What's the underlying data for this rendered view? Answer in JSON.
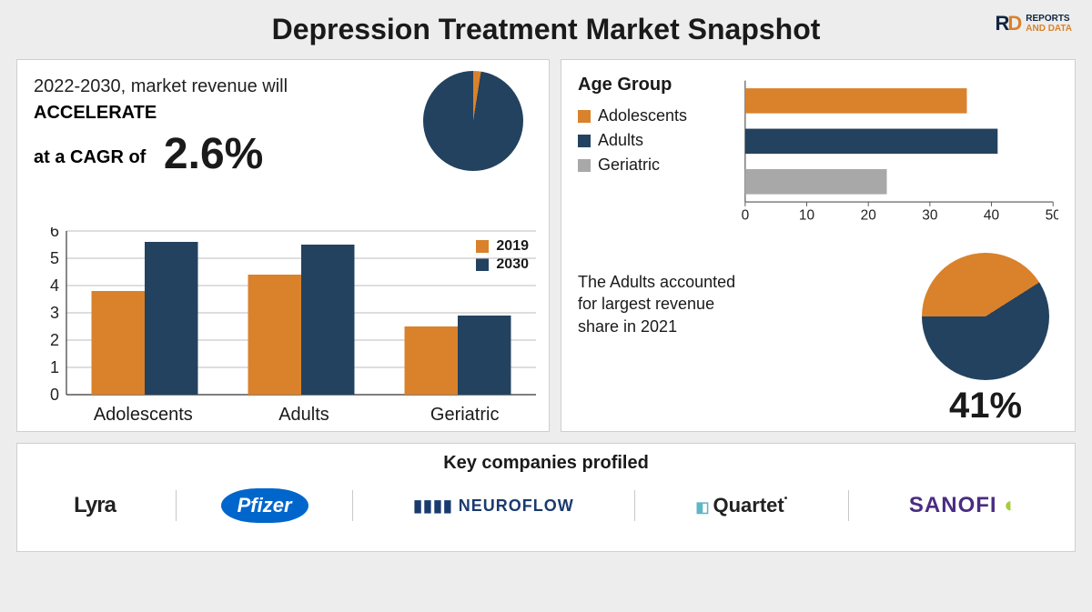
{
  "title": "Depression Treatment Market Snapshot",
  "brand": {
    "line1": "REPORTS",
    "line2": "AND DATA"
  },
  "colors": {
    "orange": "#d9822b",
    "navy": "#23425f",
    "gray": "#a8a8a8",
    "axis": "#777",
    "grid": "#bdbdbd",
    "bg": "#ededed",
    "card": "#ffffff"
  },
  "left": {
    "sub1": "2022-2030, market revenue will",
    "sub2_a": "ACCELERATE",
    "sub2_b": "at a CAGR of",
    "cagr": "2.6%",
    "pie": {
      "slice_color": "#d9822b",
      "rest_color": "#23425f",
      "slice_deg": 9
    },
    "legend": [
      {
        "label": "2019",
        "color": "#d9822b"
      },
      {
        "label": "2030",
        "color": "#23425f"
      }
    ],
    "chart": {
      "type": "grouped-bar",
      "ymax": 6,
      "ytick_step": 1,
      "categories": [
        "Adolescents",
        "Adults",
        "Geriatric"
      ],
      "series": [
        {
          "name": "2019",
          "color": "#d9822b",
          "values": [
            3.8,
            4.4,
            2.5
          ]
        },
        {
          "name": "2030",
          "color": "#23425f",
          "values": [
            5.6,
            5.5,
            2.9
          ]
        }
      ],
      "bar_width_ratio": 0.34,
      "axis_font": 18
    }
  },
  "right": {
    "heading": "Age Group",
    "legend": [
      {
        "label": "Adolescents",
        "color": "#d9822b"
      },
      {
        "label": "Adults",
        "color": "#23425f"
      },
      {
        "label": "Geriatric",
        "color": "#a8a8a8"
      }
    ],
    "hbar": {
      "type": "horizontal-bar",
      "xmax": 50,
      "xtick_step": 10,
      "bars": [
        {
          "label": "Adolescents",
          "value": 36,
          "color": "#d9822b"
        },
        {
          "label": "Adults",
          "value": 41,
          "color": "#23425f"
        },
        {
          "label": "Geriatric",
          "value": 23,
          "color": "#a8a8a8"
        }
      ]
    },
    "note_l1": "The Adults accounted",
    "note_l2": "for largest revenue",
    "note_l3": "share in 2021",
    "pie2": {
      "pct": 41,
      "slice_color": "#d9822b",
      "rest_color": "#23425f"
    },
    "pct_label": "41%"
  },
  "footer": {
    "heading": "Key companies profiled",
    "companies": [
      "Lyra",
      "Pfizer",
      "NEUROFLOW",
      "Quartet",
      "SANOFI"
    ]
  }
}
